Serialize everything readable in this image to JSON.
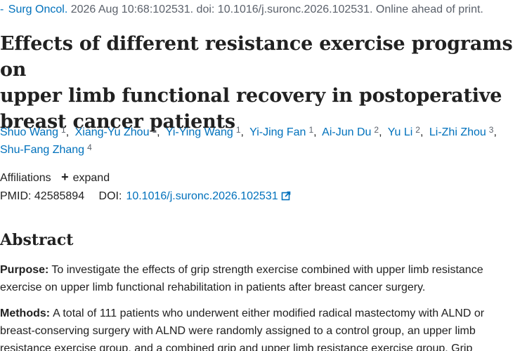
{
  "citation": {
    "journal": "Surg Oncol.",
    "details": "2026 Aug 10:68:102531. doi: 10.1016/j.suronc.2026.102531. Online ahead of print."
  },
  "title": {
    "line1": "Effects of different resistance exercise programs on",
    "line2": "upper limb functional recovery in postoperative",
    "line3": "breast cancer patients"
  },
  "authors": [
    {
      "name": "Shuo Wang",
      "aff": "1"
    },
    {
      "name": "Xiang-Yu Zhou",
      "aff": "1"
    },
    {
      "name": "Yi-Ying Wang",
      "aff": "1"
    },
    {
      "name": "Yi-Jing Fan",
      "aff": "1"
    },
    {
      "name": "Ai-Jun Du",
      "aff": "2"
    },
    {
      "name": "Yu Li",
      "aff": "2"
    },
    {
      "name": "Li-Zhi Zhou",
      "aff": "3"
    },
    {
      "name": "Shu-Fang Zhang",
      "aff": "4"
    }
  ],
  "affiliations": {
    "label": "Affiliations",
    "expand_label": "expand"
  },
  "ids": {
    "pmid_label": "PMID:",
    "pmid_value": "42585894",
    "doi_label": "DOI:",
    "doi_value": "10.1016/j.suronc.2026.102531"
  },
  "abstract": {
    "heading": "Abstract",
    "purpose_label": "Purpose:",
    "purpose_text": "To investigate the effects of grip strength exercise combined with upper limb resistance exercise on upper limb functional rehabilitation in patients after breast cancer surgery.",
    "methods_label": "Methods:",
    "methods_text": "A total of 111 patients who underwent either modified radical mastectomy with ALND or breast-conserving surgery with ALND were randomly assigned to a control group, an upper limb resistance exercise group, and a combined grip and upper limb resistance exercise group. Grip"
  },
  "colors": {
    "link": "#0071bc",
    "text": "#212121",
    "muted": "#5b616b"
  }
}
